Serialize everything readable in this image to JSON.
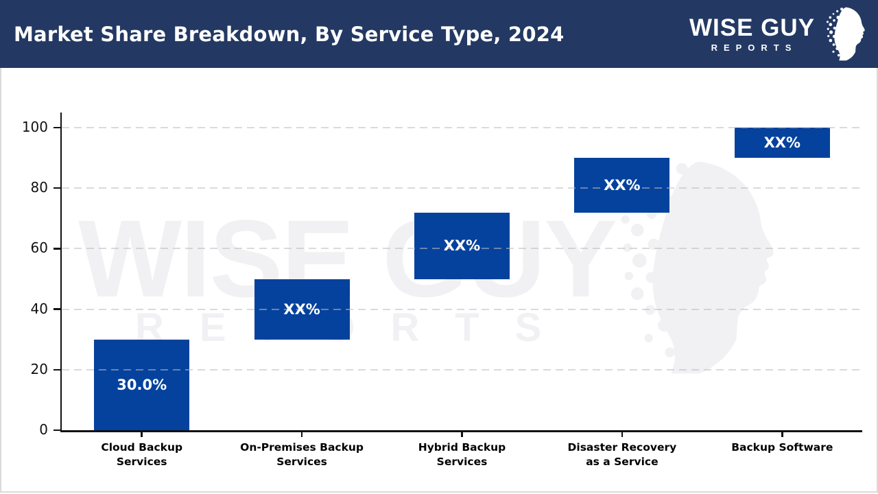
{
  "header": {
    "title": "Market Share Breakdown, By Service Type, 2024",
    "logo": {
      "brand_line1": "WISE GUY",
      "brand_line2": "REPORTS",
      "icon": "dotted-head-profile-icon"
    }
  },
  "watermark": {
    "line1": "WISE GUY",
    "line2": "REPORTS",
    "icon": "dotted-head-profile-icon"
  },
  "chart_data": {
    "type": "bar",
    "subtype": "floating-segment-waterfall",
    "title": "Market Share Breakdown, By Service Type, 2024",
    "categories": [
      "Cloud Backup Services",
      "On-Premises Backup Services",
      "Hybrid Backup Services",
      "Disaster Recovery as a Service",
      "Backup Software"
    ],
    "category_lines": [
      [
        "Cloud Backup",
        "Services"
      ],
      [
        "On-Premises Backup",
        "Services"
      ],
      [
        "Hybrid Backup",
        "Services"
      ],
      [
        "Disaster Recovery",
        "as a Service"
      ],
      [
        "Backup Software"
      ]
    ],
    "segments": [
      {
        "category": "Cloud Backup Services",
        "start": 0,
        "end": 30,
        "label": "30.0%"
      },
      {
        "category": "On-Premises Backup Services",
        "start": 30,
        "end": 50,
        "label": "XX%"
      },
      {
        "category": "Hybrid Backup Services",
        "start": 50,
        "end": 72,
        "label": "XX%"
      },
      {
        "category": "Disaster Recovery as a Service",
        "start": 72,
        "end": 90,
        "label": "XX%"
      },
      {
        "category": "Backup Software",
        "start": 90,
        "end": 100,
        "label": "XX%"
      }
    ],
    "xlabel": "",
    "ylabel": "",
    "yticks": [
      0,
      20,
      40,
      60,
      80,
      100
    ],
    "ylim": [
      0,
      105
    ],
    "grid": "horizontal-dashed",
    "legend": false
  },
  "colors": {
    "header_bg": "#233963",
    "bar_fill": "#05429D",
    "bar_label": "#FFFFFF",
    "grid_line": "#BBBBBB",
    "axis_line": "#111111",
    "tick_label": "#111111",
    "category_label": "#000000",
    "watermark": "#F1F1F4",
    "frame_border": "#DADADA"
  }
}
